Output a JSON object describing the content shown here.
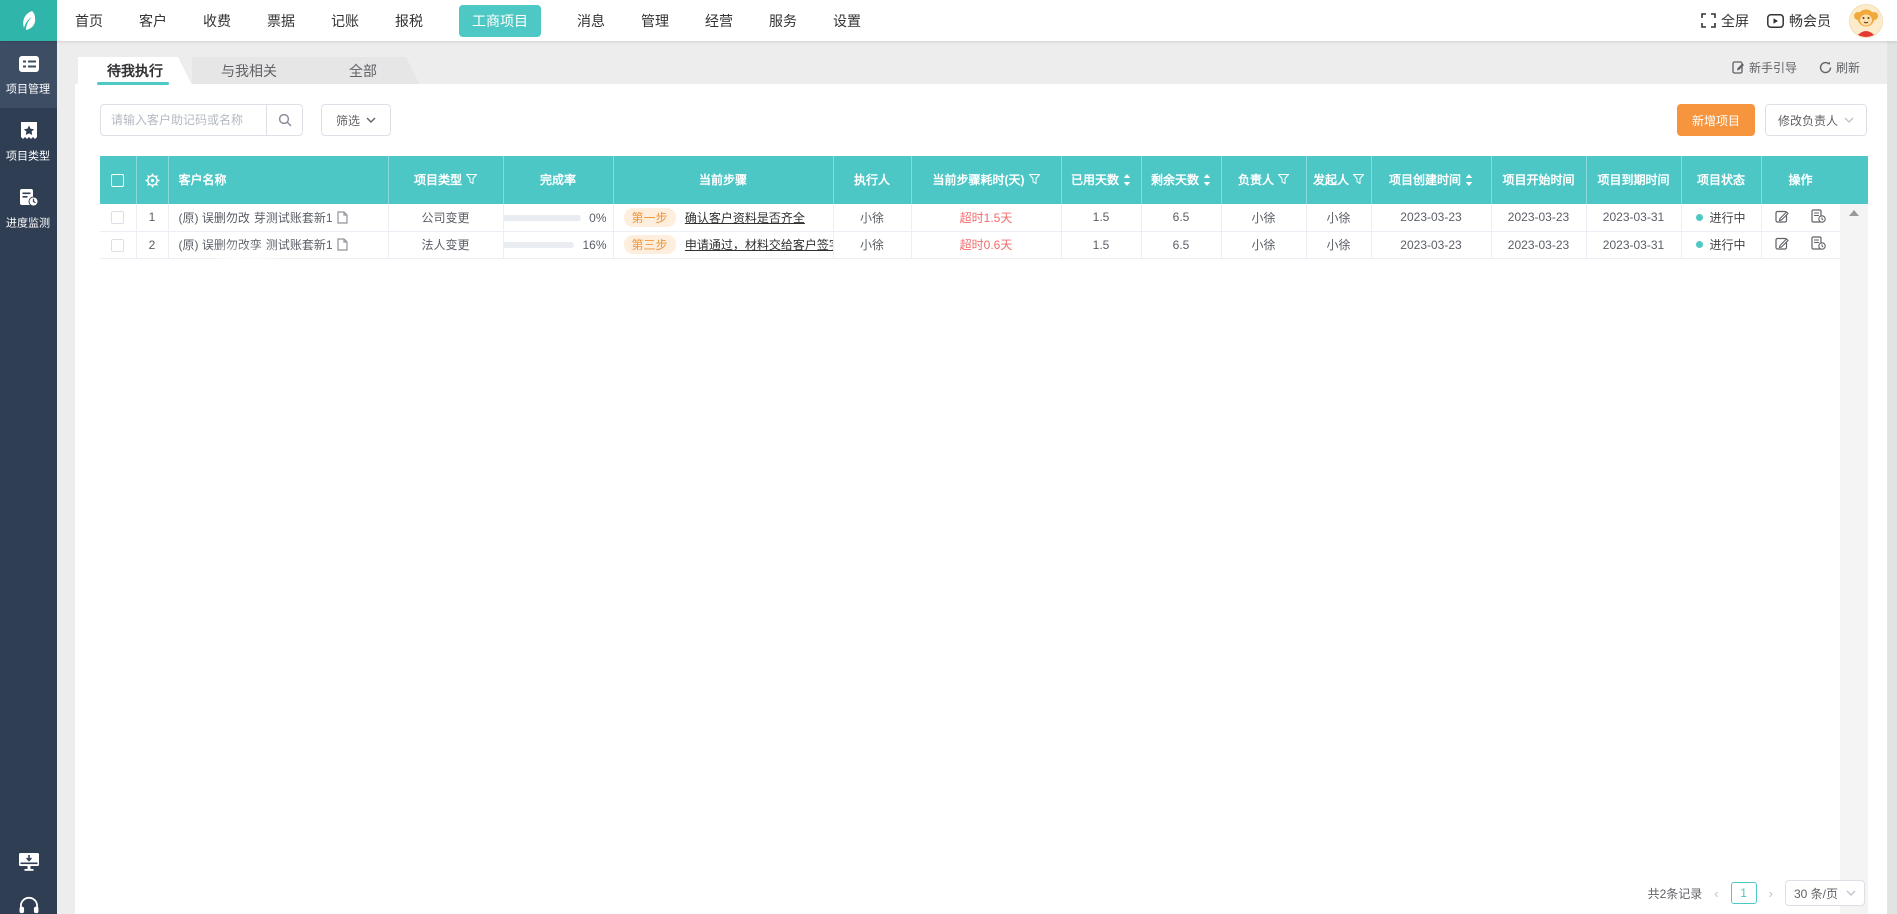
{
  "colors": {
    "teal": "#4dc8c4",
    "teal_header": "#4dc6c6",
    "logo_teal": "#2fb5a9",
    "sidebar_navy": "#2f3e52",
    "orange": "#f7953f",
    "overtime_red": "#f56c6c"
  },
  "topnav": {
    "items": [
      {
        "label": "首页"
      },
      {
        "label": "客户"
      },
      {
        "label": "收费"
      },
      {
        "label": "票据"
      },
      {
        "label": "记账"
      },
      {
        "label": "报税"
      },
      {
        "label": "工商项目"
      },
      {
        "label": "消息"
      },
      {
        "label": "管理"
      },
      {
        "label": "经营"
      },
      {
        "label": "服务"
      },
      {
        "label": "设置"
      }
    ],
    "active_item": "工商项目",
    "fullscreen_label": "全屏",
    "member_label": "畅会员"
  },
  "sidebar": {
    "items": [
      {
        "label": "项目管理",
        "icon": "project-manage-icon",
        "active": true
      },
      {
        "label": "项目类型",
        "icon": "project-type-icon",
        "active": false
      },
      {
        "label": "进度监测",
        "icon": "progress-monitor-icon",
        "active": false
      }
    ]
  },
  "tabs": [
    {
      "label": "待我执行",
      "active": true
    },
    {
      "label": "与我相关",
      "active": false
    },
    {
      "label": "全部",
      "active": false
    }
  ],
  "strip_links": {
    "guide_label": "新手引导",
    "refresh_label": "刷新"
  },
  "toolbar": {
    "search_placeholder": "请输入客户助记码或名称",
    "filter_label": "筛选",
    "add_project_label": "新增项目",
    "change_owner_label": "修改负责人"
  },
  "table": {
    "columns": [
      {
        "label": "",
        "icon": "checkbox"
      },
      {
        "label": "",
        "icon": "gear-icon"
      },
      {
        "label": "客户名称"
      },
      {
        "label": "项目类型",
        "icon": "filter-icon"
      },
      {
        "label": "完成率"
      },
      {
        "label": "当前步骤"
      },
      {
        "label": "执行人"
      },
      {
        "label": "当前步骤耗时(天)",
        "icon": "filter-icon"
      },
      {
        "label": "已用天数",
        "icon": "sort-icon"
      },
      {
        "label": "剩余天数",
        "icon": "sort-icon"
      },
      {
        "label": "负责人",
        "icon": "filter-icon"
      },
      {
        "label": "发起人",
        "icon": "filter-icon"
      },
      {
        "label": "项目创建时间",
        "icon": "sort-icon"
      },
      {
        "label": "项目开始时间"
      },
      {
        "label": "项目到期时间"
      },
      {
        "label": "项目状态"
      },
      {
        "label": "操作"
      }
    ],
    "rows": [
      {
        "index": "1",
        "customer_prefix": "(原) 误删勿改",
        "customer_suffix": "芽测试账套新1",
        "project_type": "公司变更",
        "progress": {
          "label": "0%",
          "width": "0%"
        },
        "step_tag": "第一步",
        "step_text": "确认客户资料是否齐全",
        "executor": "小徐",
        "step_overtime": "超时1.5天",
        "days_used": "1.5",
        "days_left": "6.5",
        "owner": "小徐",
        "initiator": "小徐",
        "created": "2023-03-23",
        "start_date": "2023-03-23",
        "due_date": "2023-03-31",
        "status": "进行中"
      },
      {
        "index": "2",
        "customer_prefix": "(原) 误删勿改孪",
        "customer_suffix": "测试账套新1",
        "project_type": "法人变更",
        "progress": {
          "label": "16%",
          "width": "16%"
        },
        "step_tag": "第三步",
        "step_text": "申请通过，材料交给客户签字",
        "executor": "小徐",
        "step_overtime": "超时0.6天",
        "days_used": "1.5",
        "days_left": "6.5",
        "owner": "小徐",
        "initiator": "小徐",
        "created": "2023-03-23",
        "start_date": "2023-03-23",
        "due_date": "2023-03-31",
        "status": "进行中"
      }
    ]
  },
  "pagination": {
    "total_label": "共2条记录",
    "current_page": "1",
    "page_size_label": "30 条/页"
  }
}
